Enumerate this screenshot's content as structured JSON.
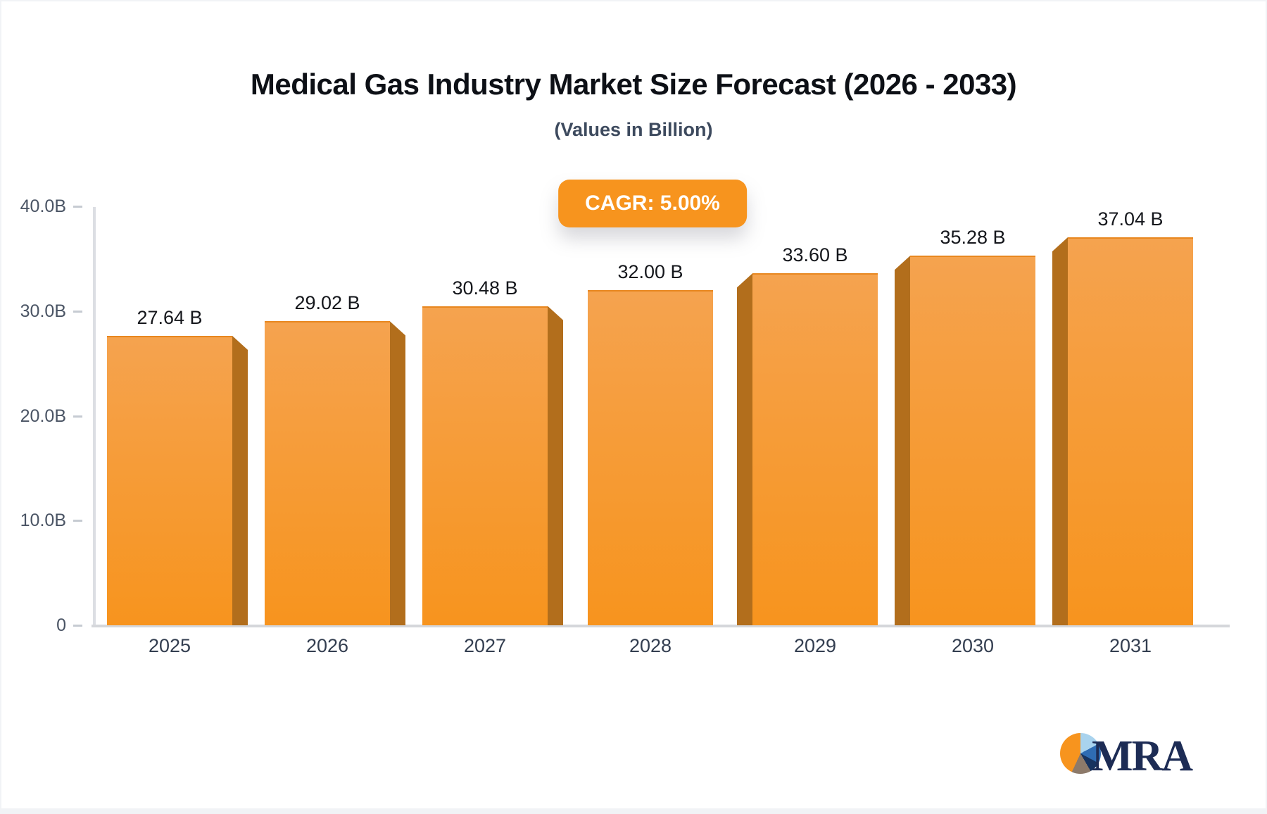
{
  "page": {
    "background": "#f1f3f6",
    "canvas_background": "#ffffff"
  },
  "header": {
    "title": "Medical Gas Industry Market Size Forecast (2026 - 2033)",
    "subtitle": "(Values in Billion)"
  },
  "badge": {
    "label": "CAGR: 5.00%",
    "background": "#f7941e",
    "text_color": "#ffffff"
  },
  "chart_data": {
    "type": "bar",
    "title": "Medical Gas Industry Market Size Forecast (2026 - 2033)",
    "subtitle": "(Values in Billion)",
    "categories": [
      "2025",
      "2026",
      "2027",
      "2028",
      "2029",
      "2030",
      "2031"
    ],
    "values": [
      27.64,
      29.02,
      30.48,
      32.0,
      33.6,
      35.28,
      37.04
    ],
    "value_labels": [
      "27.64 B",
      "29.02 B",
      "30.48 B",
      "32.00 B",
      "33.60 B",
      "35.28 B",
      "37.04 B"
    ],
    "xlabel": "",
    "ylabel": "",
    "ylim": [
      0,
      40
    ],
    "y_ticks": [
      {
        "value": 0,
        "label": "0"
      },
      {
        "value": 10,
        "label": "10.0B"
      },
      {
        "value": 20,
        "label": "20.0B"
      },
      {
        "value": 30,
        "label": "30.0B"
      },
      {
        "value": 40,
        "label": "40.0B"
      }
    ],
    "grid": false,
    "legend": "none",
    "annotation": "CAGR: 5.00%",
    "colors": {
      "bar_face_top": "#f5a34f",
      "bar_face_bottom": "#f7941e",
      "bar_side_3d": "#b26e1c",
      "axis_line": "#d5d7db",
      "tick_label": "#4a5464",
      "value_label": "#15171c",
      "category_label": "#333e50"
    }
  },
  "logo": {
    "text": "MRA",
    "icon": "pie-chart-icon",
    "pie_colors": [
      "#f7941e",
      "#a9d3ee",
      "#2f6cb3",
      "#17335f",
      "#8d7a6a"
    ],
    "text_color": "#1d2c55"
  }
}
